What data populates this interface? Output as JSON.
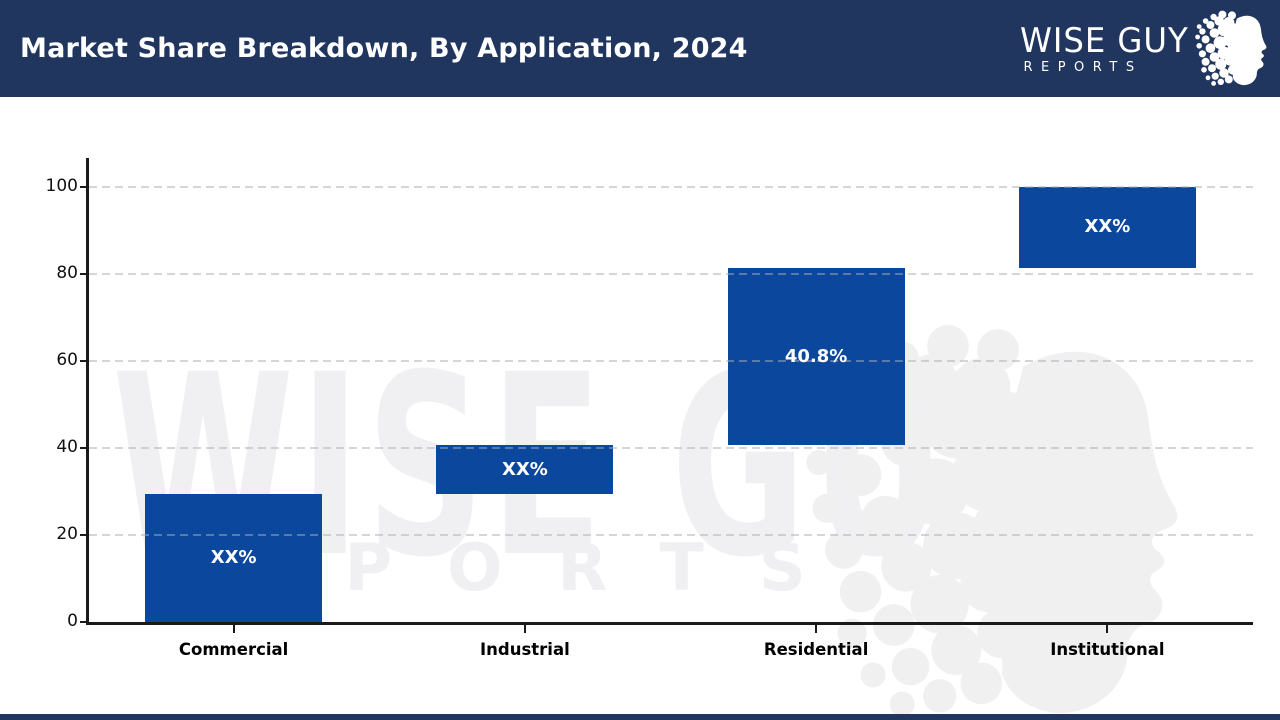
{
  "header": {
    "title": "Market Share Breakdown, By Application, 2024",
    "logo": {
      "wordmark": "WISE GUY",
      "subtitle": "REPORTS"
    }
  },
  "watermark": {
    "wordmark": "WISE GUY",
    "subtitle": "REPORTS"
  },
  "chart_data": {
    "type": "bar",
    "subtype": "waterfall",
    "title": "Market Share Breakdown, By Application, 2024",
    "categories": [
      "Commercial",
      "Industrial",
      "Residential",
      "Institutional"
    ],
    "segments": [
      {
        "category": "Commercial",
        "start": 0,
        "end": 29.5,
        "value_label": "XX%"
      },
      {
        "category": "Industrial",
        "start": 29.5,
        "end": 40.6,
        "value_label": "XX%"
      },
      {
        "category": "Residential",
        "start": 40.6,
        "end": 81.4,
        "value_label": "40.8%"
      },
      {
        "category": "Institutional",
        "start": 81.4,
        "end": 100,
        "value_label": "XX%"
      }
    ],
    "yticks": [
      0,
      20,
      40,
      60,
      80,
      100
    ],
    "ylim": [
      0,
      107
    ],
    "grid": "dashed-horizontal-over-bars",
    "legend": "none",
    "xlabel": "",
    "ylabel": ""
  },
  "colors": {
    "bar": "#0b479d",
    "bar_label": "#ffffff",
    "header_bg": "#20365f",
    "footer_bg": "#20365f",
    "axis": "#1a1a1a",
    "grid": "#d9d9d9",
    "watermark": "#f0f0f2",
    "title_text": "#ffffff"
  }
}
